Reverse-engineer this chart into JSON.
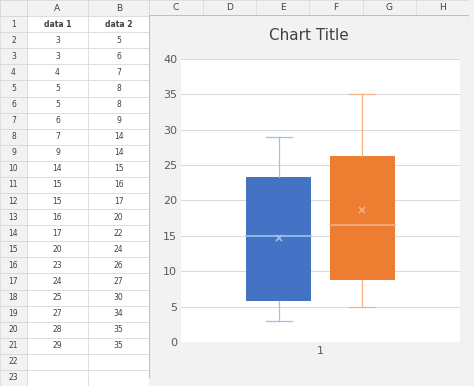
{
  "data1": [
    3,
    3,
    4,
    5,
    5,
    6,
    7,
    9,
    14,
    15,
    15,
    16,
    17,
    20,
    23,
    24,
    25,
    27,
    28,
    29
  ],
  "data2": [
    5,
    6,
    7,
    8,
    8,
    9,
    14,
    14,
    15,
    16,
    17,
    20,
    22,
    24,
    26,
    27,
    30,
    34,
    35,
    35
  ],
  "title": "Chart Title",
  "title_fontsize": 11,
  "title_color": "#404040",
  "box1_color": "#4472C4",
  "box2_color": "#ED7D31",
  "whisker1_color": "#9DC3E6",
  "whisker2_color": "#F4B183",
  "median1_color": "#9DC3E6",
  "median2_color": "#F4B183",
  "xlabel": "1",
  "ylim": [
    0,
    40
  ],
  "yticks": [
    0,
    5,
    10,
    15,
    20,
    25,
    30,
    35,
    40
  ],
  "background_color": "#FFFFFF",
  "chart_bg": "#FFFFFF",
  "grid_color": "#D9D9D9",
  "excel_bg": "#F2F2F2",
  "cell_border": "#D0D0D0",
  "header_bg": "#F2F2F2",
  "col_headers": [
    "",
    "A",
    "B",
    "C",
    "D",
    "E",
    "F",
    "G",
    "H"
  ],
  "row_headers": [
    "1",
    "2",
    "3",
    "4",
    "5",
    "6",
    "7",
    "8",
    "9",
    "10",
    "11",
    "12",
    "13",
    "14",
    "15",
    "16",
    "17",
    "18",
    "19",
    "20",
    "21",
    "22",
    "23"
  ],
  "spreadsheet_data": [
    [
      "data 1",
      "data 2"
    ],
    [
      "3",
      "5"
    ],
    [
      "3",
      "6"
    ],
    [
      "4",
      "7"
    ],
    [
      "5",
      "8"
    ],
    [
      "5",
      "8"
    ],
    [
      "6",
      "9"
    ],
    [
      "7",
      "14"
    ],
    [
      "9",
      "14"
    ],
    [
      "14",
      "15"
    ],
    [
      "15",
      "16"
    ],
    [
      "15",
      "17"
    ],
    [
      "16",
      "20"
    ],
    [
      "17",
      "22"
    ],
    [
      "20",
      "24"
    ],
    [
      "23",
      "26"
    ],
    [
      "24",
      "27"
    ],
    [
      "25",
      "30"
    ],
    [
      "27",
      "34"
    ],
    [
      "28",
      "35"
    ],
    [
      "29",
      "35"
    ],
    [
      "",
      ""
    ],
    [
      "",
      ""
    ]
  ],
  "figsize": [
    4.74,
    3.86
  ],
  "dpi": 100
}
